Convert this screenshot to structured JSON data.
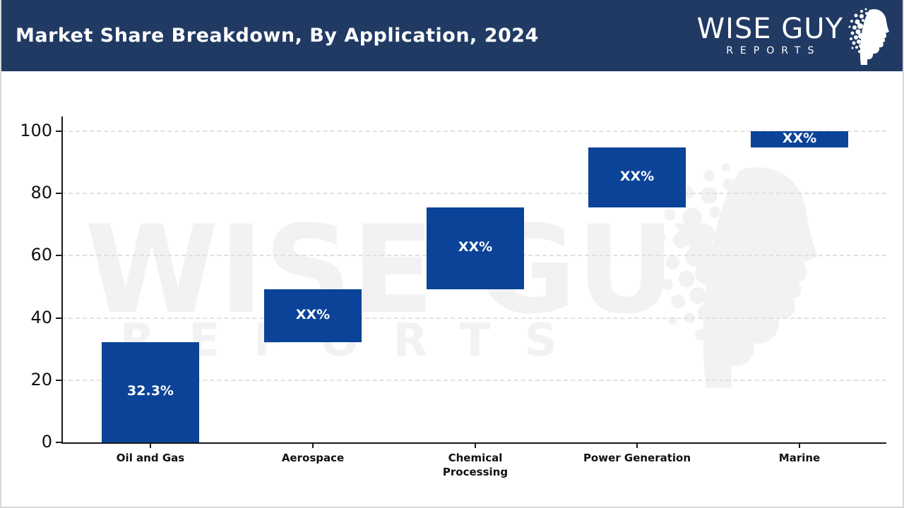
{
  "header": {
    "title": "Market Share Breakdown, By Application, 2024",
    "logo": {
      "line1": "WISE GUY",
      "line2": "REPORTS"
    }
  },
  "watermark": {
    "line1": "WISE GUY",
    "line2": "REPORTS"
  },
  "colors": {
    "header_bg": "#203a64",
    "bar": "#0a4397",
    "bar_label": "#ffffff",
    "grid": "#e0e0e0",
    "axis": "#1a1a1a",
    "watermark": "#f2f2f4"
  },
  "chart_data": {
    "type": "bar",
    "subtype": "waterfall",
    "title": "Market Share Breakdown, By Application, 2024",
    "xlabel": "",
    "ylabel": "",
    "ylim": [
      0,
      100
    ],
    "yticks": [
      0,
      20,
      40,
      60,
      80,
      100
    ],
    "grid": "horizontal-dashed",
    "legend": "none",
    "categories": [
      "Oil and Gas",
      "Aerospace",
      "Chemical Processing",
      "Power Generation",
      "Marine"
    ],
    "segments": [
      {
        "category": "Oil and Gas",
        "start": 0,
        "end": 32.3,
        "label": "32.3%"
      },
      {
        "category": "Aerospace",
        "start": 32.3,
        "end": 49.1,
        "label": "XX%"
      },
      {
        "category": "Chemical Processing",
        "category_display": "Chemical\nProcessing",
        "start": 49.1,
        "end": 75.4,
        "label": "XX%"
      },
      {
        "category": "Power Generation",
        "start": 75.4,
        "end": 94.7,
        "label": "XX%"
      },
      {
        "category": "Marine",
        "start": 94.7,
        "end": 100,
        "label": "XX%"
      }
    ]
  }
}
